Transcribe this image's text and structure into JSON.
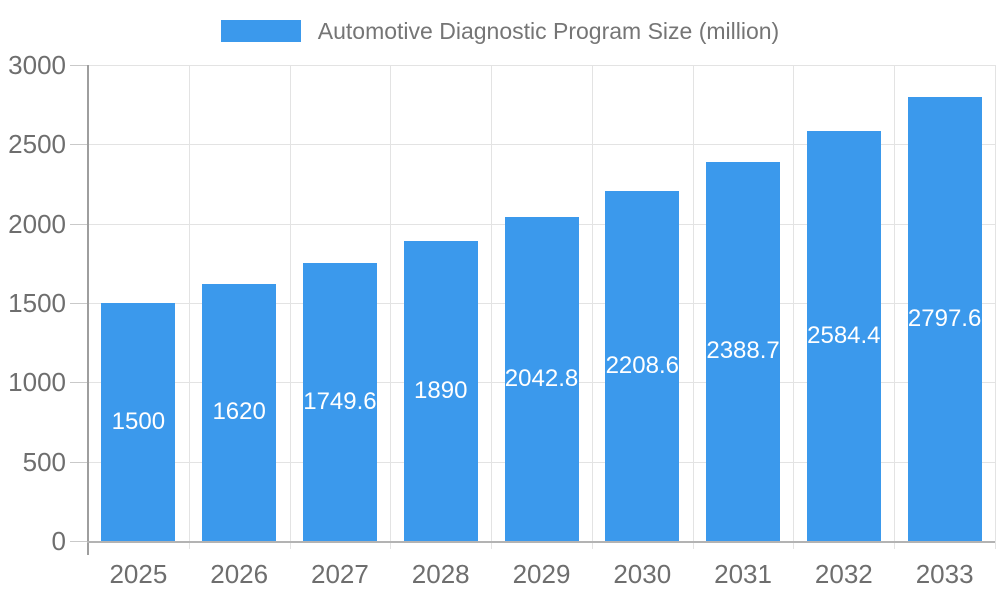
{
  "legend": {
    "label": "Automotive Diagnostic Program Size (million)",
    "swatch_color": "#3B99EC"
  },
  "colors": {
    "bar": "#3B99EC",
    "bar_value_text": "#ffffff",
    "axis_text": "#6e6e6e",
    "legend_text": "#757575",
    "gridline": "#e3e3e3",
    "y_axis_line": "#9e9e9e",
    "x_baseline": "#b3b3b3"
  },
  "chart_data": {
    "type": "bar",
    "title": "Automotive Diagnostic Program Size (million)",
    "categories": [
      "2025",
      "2026",
      "2027",
      "2028",
      "2029",
      "2030",
      "2031",
      "2032",
      "2033"
    ],
    "values": [
      1500,
      1620,
      1749.6,
      1890,
      2042.8,
      2208.6,
      2388.7,
      2584.4,
      2797.6
    ],
    "value_labels": [
      "1500",
      "1620",
      "1749.6",
      "1890",
      "2042.8",
      "2208.6",
      "2388.7",
      "2584.4",
      "2797.6"
    ],
    "xlabel": "",
    "ylabel": "",
    "ylim": [
      0,
      3000
    ],
    "yticks": [
      0,
      500,
      1000,
      1500,
      2000,
      2500,
      3000
    ],
    "grid": true,
    "legend_position": "top",
    "value_label_position": "inside-center"
  }
}
